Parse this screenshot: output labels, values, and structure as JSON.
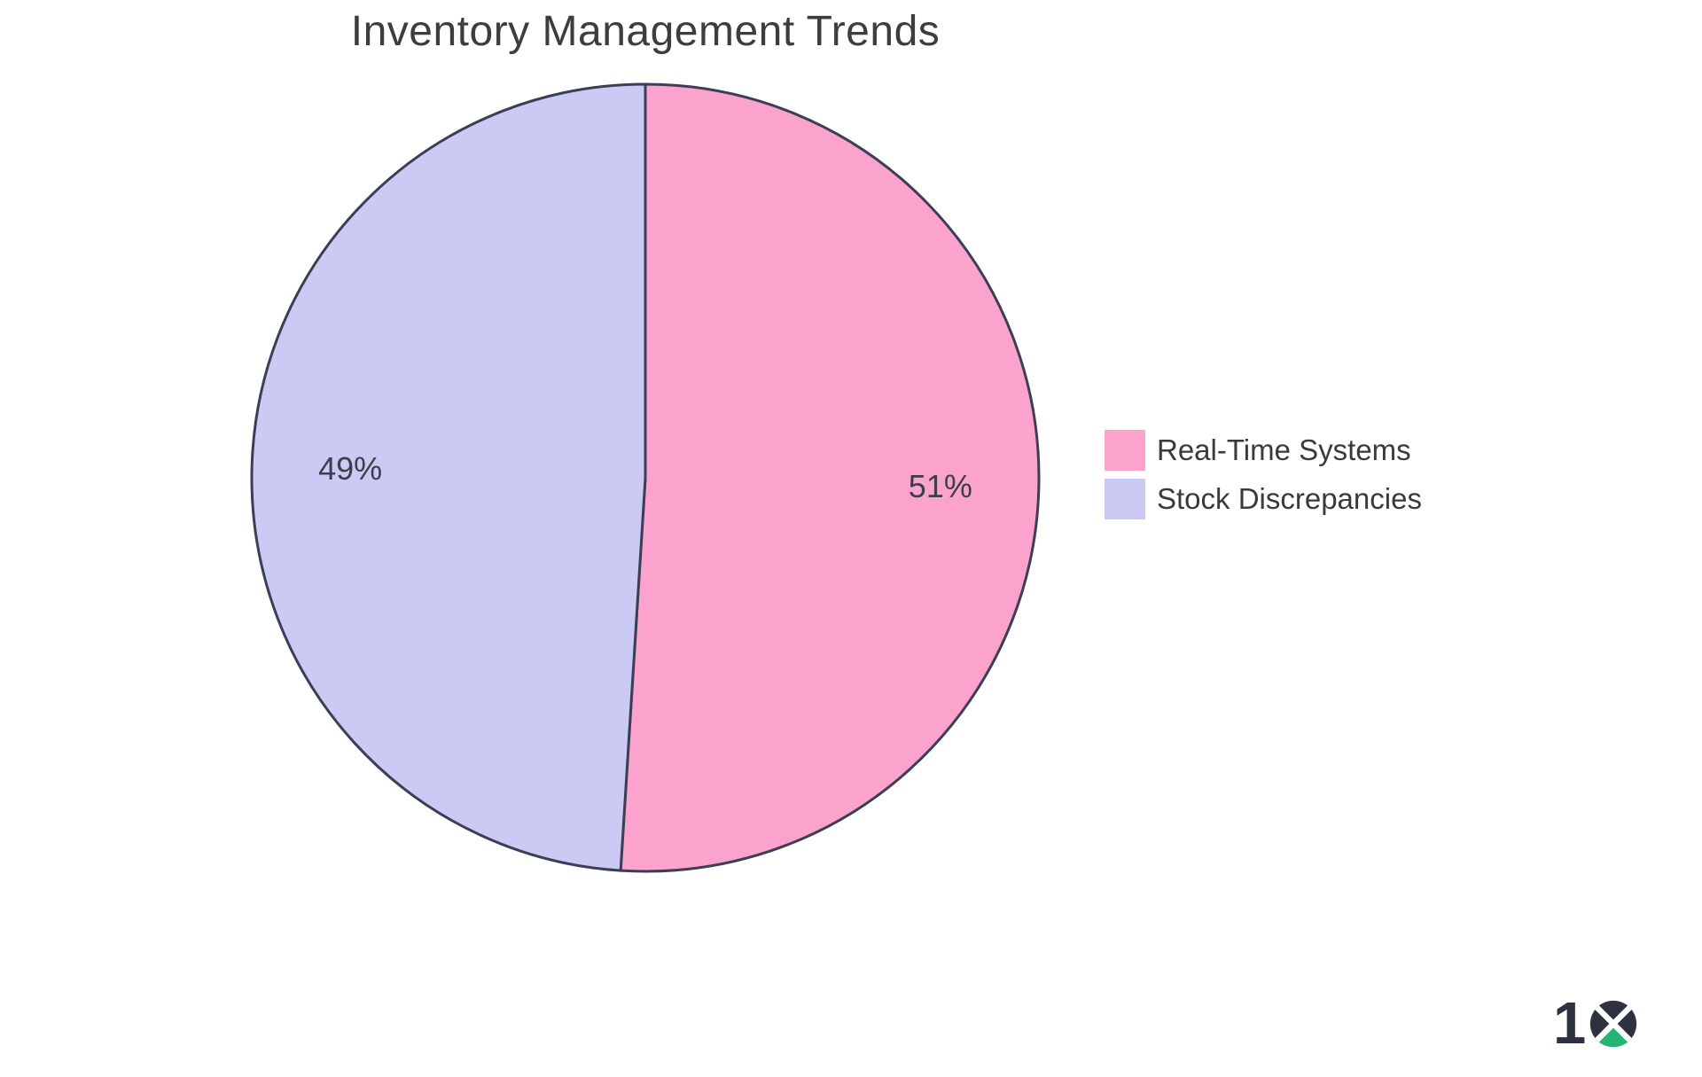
{
  "page": {
    "background_color": "#ffffff"
  },
  "chart_data": {
    "type": "pie",
    "title": "Inventory Management Trends",
    "series": [
      {
        "name": "Real-Time Systems",
        "value": 51,
        "percent_label": "51%",
        "color": "#fba3cc"
      },
      {
        "name": "Stock Discrepancies",
        "value": 49,
        "percent_label": "49%",
        "color": "#cacaf4"
      }
    ],
    "stroke_color": "#3b3e55",
    "stroke_width": 3,
    "start_angle_deg": 0,
    "direction": "clockwise",
    "label_radius_ratio": 0.75,
    "label_color": "#3c3e49",
    "legend_position": "right",
    "legend_text_color": "#3a3a3a",
    "title_color": "#3d3d3d"
  },
  "logo": {
    "numeral": "1",
    "dark_color": "#2e3140",
    "green_color": "#22b573",
    "cross_color": "#ffffff"
  }
}
